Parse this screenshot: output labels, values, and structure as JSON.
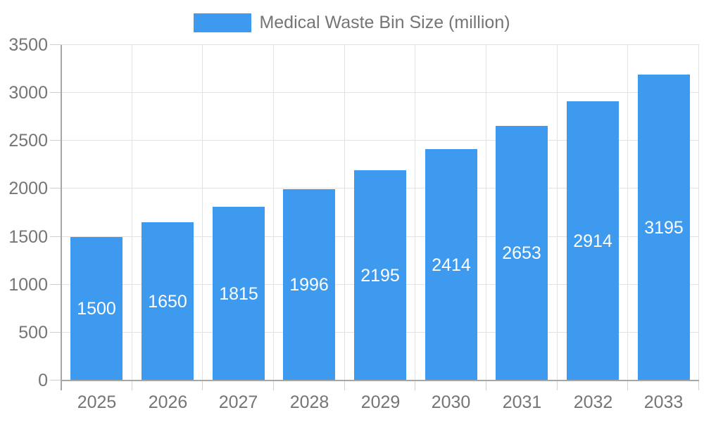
{
  "legend": {
    "label": "Medical Waste Bin Size (million)"
  },
  "chart_data": {
    "type": "bar",
    "title": "Medical Waste Bin Size (million)",
    "categories": [
      "2025",
      "2026",
      "2027",
      "2028",
      "2029",
      "2030",
      "2031",
      "2032",
      "2033"
    ],
    "values": [
      1500,
      1650,
      1815,
      1996,
      2195,
      2414,
      2653,
      2914,
      3195
    ],
    "value_labels": [
      "1500",
      "1650",
      "1815",
      "1996",
      "2195",
      "2414",
      "2653",
      "2914",
      "3195"
    ],
    "xlabel": "",
    "ylabel": "",
    "ylim": [
      0,
      3500
    ],
    "yticks": [
      0,
      500,
      1000,
      1500,
      2000,
      2500,
      3000,
      3500
    ],
    "grid": true,
    "legend_position": "top-center",
    "colors": {
      "bar": "#3D9AEE",
      "grid": "#E2E2E2",
      "tick": "#CFCFCF",
      "axis": "#A6A6A6",
      "text": "#757575",
      "value_label": "#FFFFFF",
      "background": "#FFFFFF"
    }
  }
}
